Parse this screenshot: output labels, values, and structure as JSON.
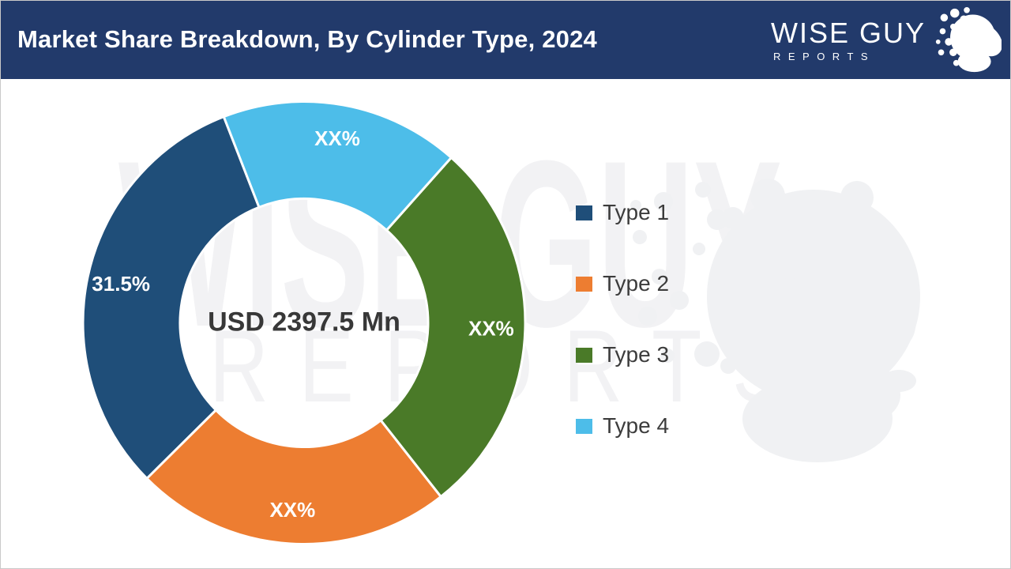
{
  "header": {
    "title": "Market Share Breakdown, By Cylinder Type, 2024",
    "logo": {
      "line1": "WISE GUY",
      "line2": "REPORTS"
    }
  },
  "watermark": {
    "line1": "WISE GUY",
    "line2": "REPORTS"
  },
  "chart_data": {
    "type": "pie",
    "subtype": "donut",
    "title": "Market Share Breakdown, By Cylinder Type, 2024",
    "center_label": "USD 2397.5 Mn",
    "legend_position": "right",
    "start_angle_deg": 111.3,
    "direction": "counterclockwise",
    "segments": [
      {
        "name": "Type 1",
        "value_pct": 31.5,
        "label": "31.5%",
        "color": "#1f4e79"
      },
      {
        "name": "Type 2",
        "value_pct": 23.2,
        "label": "XX%",
        "color": "#ed7d31"
      },
      {
        "name": "Type 3",
        "value_pct": 27.8,
        "label": "XX%",
        "color": "#4a7a28"
      },
      {
        "name": "Type 4",
        "value_pct": 17.5,
        "label": "XX%",
        "color": "#4dbde9"
      }
    ]
  }
}
